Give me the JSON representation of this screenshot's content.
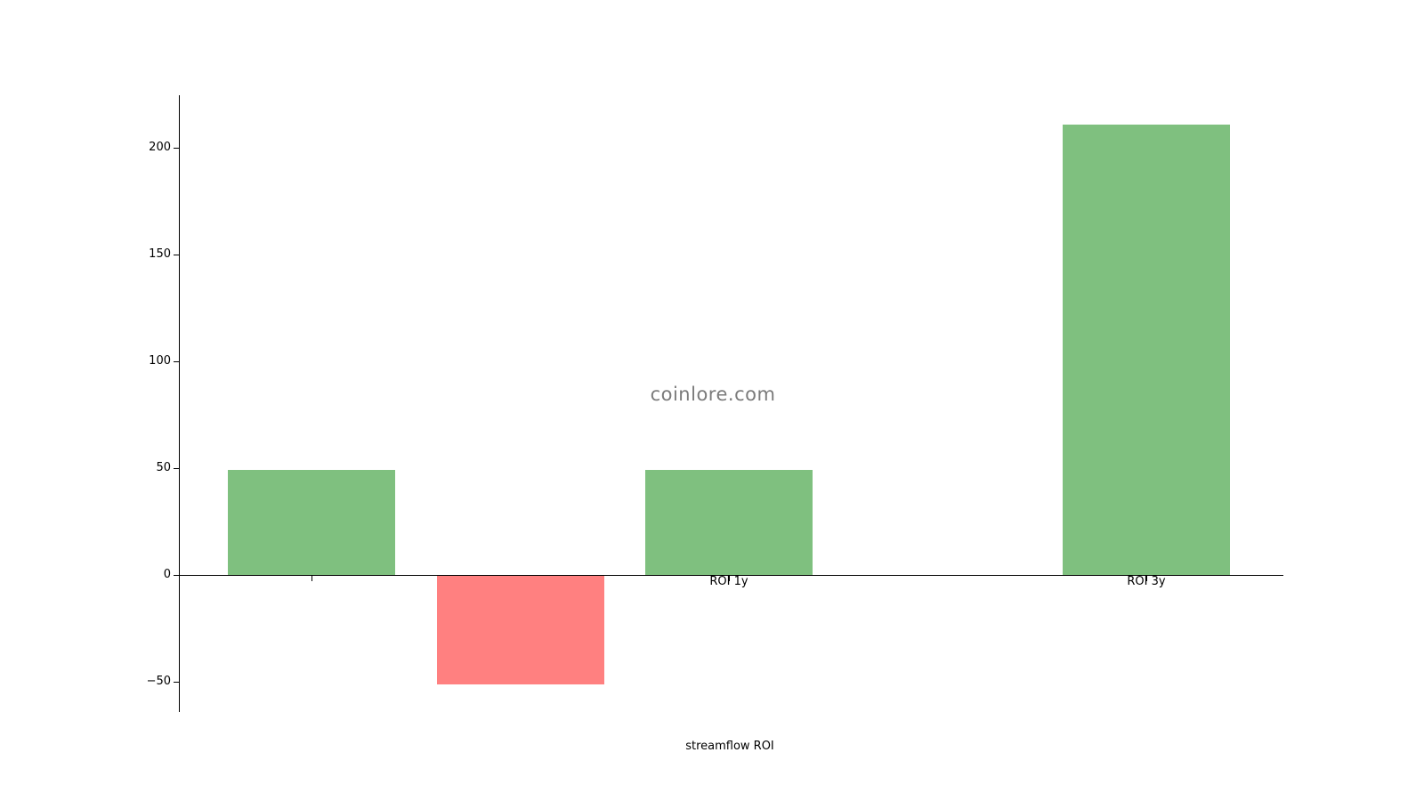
{
  "chart_data": {
    "type": "bar",
    "title": "",
    "xlabel": "streamflow ROI",
    "watermark": "coinlore.com",
    "x_positions": [
      0,
      1,
      2,
      4
    ],
    "values": [
      49,
      -51,
      49,
      211
    ],
    "bar_labels": [
      "",
      "",
      "ROI 1y",
      "ROI 3y"
    ],
    "bar_colors": [
      "#7fc07f",
      "#ff8080",
      "#7fc07f",
      "#7fc07f"
    ],
    "x_tick_positions": [
      0,
      2,
      4
    ],
    "x_tick_labels": [
      "",
      "ROI 1y",
      "ROI 3y"
    ],
    "y_ticks": [
      {
        "value": -50,
        "label": "−50"
      },
      {
        "value": 0,
        "label": "0"
      },
      {
        "value": 50,
        "label": "50"
      },
      {
        "value": 100,
        "label": "100"
      },
      {
        "value": 150,
        "label": "150"
      },
      {
        "value": 200,
        "label": "200"
      }
    ],
    "ylim": [
      -64,
      225
    ],
    "grid": false,
    "legend": null,
    "colors": {
      "positive": "#7fc07f",
      "negative": "#ff8080",
      "axis": "#000000",
      "text": "#000000",
      "watermark": "#7b7b7b",
      "background": "#ffffff"
    }
  }
}
